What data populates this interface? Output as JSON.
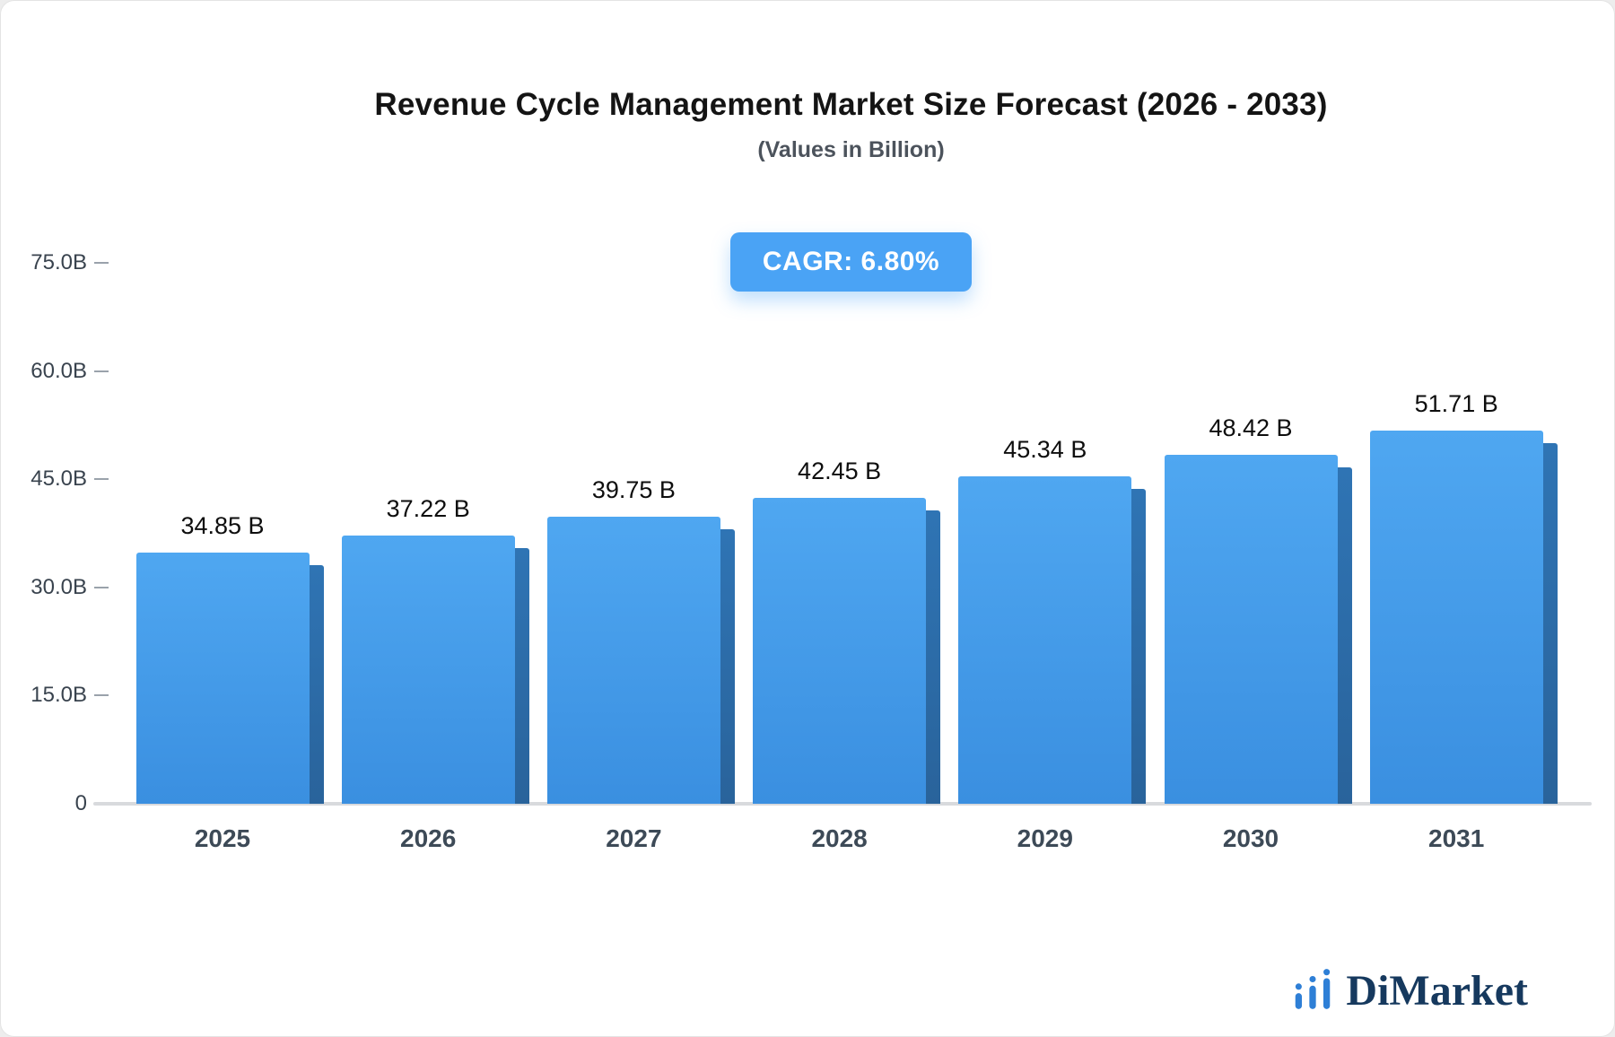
{
  "chart_data": {
    "type": "bar",
    "title": "Revenue Cycle Management Market Size Forecast (2026 - 2033)",
    "subtitle": "(Values in Billion)",
    "badge": "CAGR: 6.80%",
    "categories": [
      "2025",
      "2026",
      "2027",
      "2028",
      "2029",
      "2030",
      "2031"
    ],
    "values": [
      34.85,
      37.22,
      39.75,
      42.45,
      45.34,
      48.42,
      51.71
    ],
    "value_labels": [
      "34.85 B",
      "37.22 B",
      "39.75 B",
      "42.45 B",
      "45.34 B",
      "48.42 B",
      "51.71 B"
    ],
    "ylim": [
      0,
      75
    ],
    "yticks": [
      {
        "value": 75,
        "label": "75.0B"
      },
      {
        "value": 60,
        "label": "60.0B"
      },
      {
        "value": 45,
        "label": "45.0B"
      },
      {
        "value": 30,
        "label": "30.0B"
      },
      {
        "value": 15,
        "label": "15.0B"
      },
      {
        "value": 0,
        "label": "0"
      }
    ],
    "grid": false,
    "legend": false,
    "bar_color": "#42a0ee",
    "bar_side_color": "#2c6da7"
  },
  "branding": {
    "logo_text": "DiMarket",
    "logo_icon": "bar-chart-icon",
    "logo_color": "#16395e",
    "icon_color": "#2e7fd6"
  },
  "colors": {
    "badge_bg": "#4aa3f5",
    "badge_text": "#ffffff",
    "axis_text": "#39434e"
  }
}
